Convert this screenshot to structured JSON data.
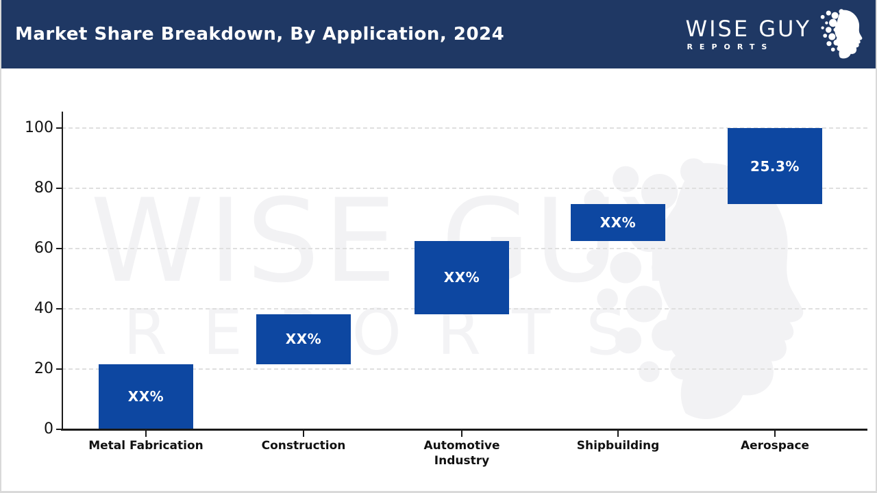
{
  "header": {
    "title": "Market Share Breakdown, By Application, 2024",
    "bg_color": "#1f3864",
    "logo": {
      "line1": "WISE GUY",
      "line2": "REPORTS"
    }
  },
  "watermark": {
    "line1": "WISE GUY",
    "line2": "REPORTS"
  },
  "chart_data": {
    "type": "bar",
    "subtype": "floating-waterfall",
    "title": "Market Share Breakdown, By Application, 2024",
    "categories": [
      "Metal Fabrication",
      "Construction",
      "Automotive Industry",
      "Shipbuilding",
      "Aerospace"
    ],
    "category_display": [
      "Metal Fabrication",
      "Construction",
      "Automotive\nIndustry",
      "Shipbuilding",
      "Aerospace"
    ],
    "segments": [
      {
        "category": "Metal Fabrication",
        "start": 0,
        "end": 21.7,
        "value": 21.7,
        "label": "XX%"
      },
      {
        "category": "Construction",
        "start": 21.7,
        "end": 38.2,
        "value": 16.5,
        "label": "XX%"
      },
      {
        "category": "Automotive Industry",
        "start": 38.2,
        "end": 62.5,
        "value": 24.3,
        "label": "XX%"
      },
      {
        "category": "Shipbuilding",
        "start": 62.5,
        "end": 74.7,
        "value": 12.2,
        "label": "XX%"
      },
      {
        "category": "Aerospace",
        "start": 74.7,
        "end": 100,
        "value": 25.3,
        "label": "25.3%"
      }
    ],
    "ylabel": "",
    "xlabel": "",
    "ylim": [
      0,
      105
    ],
    "yticks": [
      0,
      20,
      40,
      60,
      80,
      100
    ],
    "grid": {
      "horizontal": true,
      "style": "dashed",
      "color": "#dfdfdf"
    },
    "legend": "none",
    "style": {
      "bar_color": "#0d47a1",
      "bar_label_color": "#ffffff",
      "axis_color": "#1a1a1a",
      "header_color": "#1f3864"
    }
  }
}
